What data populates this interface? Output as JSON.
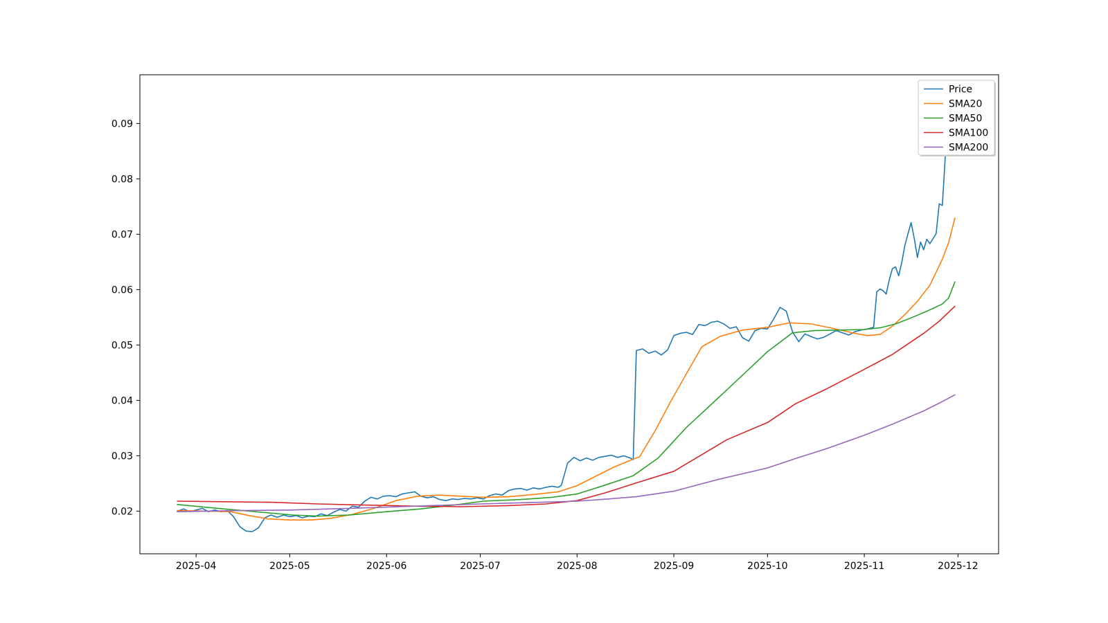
{
  "figure": {
    "background": "#ffffff",
    "border_color": "#000000"
  },
  "chart_data": {
    "type": "line",
    "title": "",
    "xlabel": "",
    "ylabel": "",
    "grid": false,
    "xlim": [
      "2025-03-14",
      "2025-12-14"
    ],
    "ylim": [
      0.0123,
      0.0988
    ],
    "x_ticks": [
      "2025-04",
      "2025-05",
      "2025-06",
      "2025-07",
      "2025-08",
      "2025-09",
      "2025-10",
      "2025-11",
      "2025-12"
    ],
    "y_ticks": [
      0.02,
      0.03,
      0.04,
      0.05,
      0.06,
      0.07,
      0.08,
      0.09
    ],
    "y_tick_labels": [
      "0.02",
      "0.03",
      "0.04",
      "0.05",
      "0.06",
      "0.07",
      "0.08",
      "0.09"
    ],
    "legend": {
      "position": "upper right",
      "entries": [
        "Price",
        "SMA20",
        "SMA50",
        "SMA100",
        "SMA200"
      ],
      "background": "#ffffff",
      "border_color": "#cccccc"
    },
    "series": [
      {
        "name": "Price",
        "color": "#1f77b4",
        "points": [
          [
            "2025-03-26",
            0.02
          ],
          [
            "2025-03-28",
            0.0204
          ],
          [
            "2025-03-30",
            0.0199
          ],
          [
            "2025-04-01",
            0.0202
          ],
          [
            "2025-04-03",
            0.0205
          ],
          [
            "2025-04-05",
            0.0199
          ],
          [
            "2025-04-07",
            0.0202
          ],
          [
            "2025-04-09",
            0.0199
          ],
          [
            "2025-04-11",
            0.0201
          ],
          [
            "2025-04-13",
            0.019
          ],
          [
            "2025-04-15",
            0.0172
          ],
          [
            "2025-04-17",
            0.0164
          ],
          [
            "2025-04-19",
            0.0163
          ],
          [
            "2025-04-21",
            0.017
          ],
          [
            "2025-04-23",
            0.0188
          ],
          [
            "2025-04-25",
            0.0193
          ],
          [
            "2025-04-27",
            0.0189
          ],
          [
            "2025-04-29",
            0.0193
          ],
          [
            "2025-05-01",
            0.019
          ],
          [
            "2025-05-03",
            0.0192
          ],
          [
            "2025-05-05",
            0.0188
          ],
          [
            "2025-05-07",
            0.0191
          ],
          [
            "2025-05-09",
            0.019
          ],
          [
            "2025-05-11",
            0.0195
          ],
          [
            "2025-05-13",
            0.0192
          ],
          [
            "2025-05-15",
            0.0198
          ],
          [
            "2025-05-17",
            0.0203
          ],
          [
            "2025-05-19",
            0.02
          ],
          [
            "2025-05-21",
            0.0209
          ],
          [
            "2025-05-23",
            0.0207
          ],
          [
            "2025-05-25",
            0.0218
          ],
          [
            "2025-05-27",
            0.0225
          ],
          [
            "2025-05-29",
            0.0222
          ],
          [
            "2025-05-31",
            0.0227
          ],
          [
            "2025-06-02",
            0.0228
          ],
          [
            "2025-06-04",
            0.0226
          ],
          [
            "2025-06-06",
            0.0231
          ],
          [
            "2025-06-08",
            0.0233
          ],
          [
            "2025-06-10",
            0.0235
          ],
          [
            "2025-06-12",
            0.0227
          ],
          [
            "2025-06-14",
            0.0224
          ],
          [
            "2025-06-16",
            0.0226
          ],
          [
            "2025-06-18",
            0.0221
          ],
          [
            "2025-06-20",
            0.0219
          ],
          [
            "2025-06-22",
            0.0222
          ],
          [
            "2025-06-24",
            0.0221
          ],
          [
            "2025-06-26",
            0.0223
          ],
          [
            "2025-06-28",
            0.0222
          ],
          [
            "2025-06-30",
            0.0224
          ],
          [
            "2025-07-02",
            0.0222
          ],
          [
            "2025-07-04",
            0.0228
          ],
          [
            "2025-07-06",
            0.0231
          ],
          [
            "2025-07-08",
            0.0229
          ],
          [
            "2025-07-10",
            0.0237
          ],
          [
            "2025-07-12",
            0.024
          ],
          [
            "2025-07-14",
            0.0241
          ],
          [
            "2025-07-16",
            0.0238
          ],
          [
            "2025-07-18",
            0.0242
          ],
          [
            "2025-07-20",
            0.024
          ],
          [
            "2025-07-22",
            0.0243
          ],
          [
            "2025-07-24",
            0.0245
          ],
          [
            "2025-07-26",
            0.0243
          ],
          [
            "2025-07-27",
            0.0247
          ],
          [
            "2025-07-29",
            0.0287
          ],
          [
            "2025-07-31",
            0.0297
          ],
          [
            "2025-08-02",
            0.0291
          ],
          [
            "2025-08-04",
            0.0296
          ],
          [
            "2025-08-06",
            0.0292
          ],
          [
            "2025-08-08",
            0.0297
          ],
          [
            "2025-08-10",
            0.0299
          ],
          [
            "2025-08-12",
            0.0301
          ],
          [
            "2025-08-14",
            0.0297
          ],
          [
            "2025-08-16",
            0.03
          ],
          [
            "2025-08-18",
            0.0296
          ],
          [
            "2025-08-19",
            0.0293
          ],
          [
            "2025-08-20",
            0.049
          ],
          [
            "2025-08-22",
            0.0493
          ],
          [
            "2025-08-24",
            0.0485
          ],
          [
            "2025-08-26",
            0.0489
          ],
          [
            "2025-08-28",
            0.0482
          ],
          [
            "2025-08-30",
            0.0491
          ],
          [
            "2025-09-01",
            0.0517
          ],
          [
            "2025-09-03",
            0.0521
          ],
          [
            "2025-09-05",
            0.0523
          ],
          [
            "2025-09-07",
            0.0519
          ],
          [
            "2025-09-09",
            0.0537
          ],
          [
            "2025-09-11",
            0.0535
          ],
          [
            "2025-09-13",
            0.0541
          ],
          [
            "2025-09-15",
            0.0543
          ],
          [
            "2025-09-17",
            0.0538
          ],
          [
            "2025-09-19",
            0.053
          ],
          [
            "2025-09-21",
            0.0533
          ],
          [
            "2025-09-23",
            0.0513
          ],
          [
            "2025-09-25",
            0.0507
          ],
          [
            "2025-09-27",
            0.0526
          ],
          [
            "2025-09-29",
            0.053
          ],
          [
            "2025-10-01",
            0.0529
          ],
          [
            "2025-10-03",
            0.0547
          ],
          [
            "2025-10-05",
            0.0568
          ],
          [
            "2025-10-07",
            0.0561
          ],
          [
            "2025-10-09",
            0.0524
          ],
          [
            "2025-10-11",
            0.0506
          ],
          [
            "2025-10-13",
            0.052
          ],
          [
            "2025-10-15",
            0.0515
          ],
          [
            "2025-10-17",
            0.0511
          ],
          [
            "2025-10-19",
            0.0514
          ],
          [
            "2025-10-21",
            0.052
          ],
          [
            "2025-10-23",
            0.0526
          ],
          [
            "2025-10-25",
            0.0522
          ],
          [
            "2025-10-27",
            0.0518
          ],
          [
            "2025-10-29",
            0.0524
          ],
          [
            "2025-10-31",
            0.0527
          ],
          [
            "2025-11-02",
            0.0529
          ],
          [
            "2025-11-04",
            0.0532
          ],
          [
            "2025-11-05",
            0.0596
          ],
          [
            "2025-11-06",
            0.0601
          ],
          [
            "2025-11-07",
            0.0598
          ],
          [
            "2025-11-08",
            0.0592
          ],
          [
            "2025-11-09",
            0.0618
          ],
          [
            "2025-11-10",
            0.0638
          ],
          [
            "2025-11-11",
            0.0641
          ],
          [
            "2025-11-12",
            0.0625
          ],
          [
            "2025-11-13",
            0.0649
          ],
          [
            "2025-11-14",
            0.068
          ],
          [
            "2025-11-15",
            0.0701
          ],
          [
            "2025-11-16",
            0.0721
          ],
          [
            "2025-11-17",
            0.0692
          ],
          [
            "2025-11-18",
            0.0658
          ],
          [
            "2025-11-19",
            0.0686
          ],
          [
            "2025-11-20",
            0.0672
          ],
          [
            "2025-11-21",
            0.0691
          ],
          [
            "2025-11-22",
            0.0683
          ],
          [
            "2025-11-24",
            0.0701
          ],
          [
            "2025-11-25",
            0.0755
          ],
          [
            "2025-11-26",
            0.0752
          ],
          [
            "2025-11-27",
            0.0846
          ],
          [
            "2025-11-28",
            0.0852
          ],
          [
            "2025-11-30",
            0.095
          ]
        ]
      },
      {
        "name": "SMA20",
        "color": "#ff7f0e",
        "points": [
          [
            "2025-03-26",
            0.0201
          ],
          [
            "2025-04-05",
            0.02
          ],
          [
            "2025-04-12",
            0.0199
          ],
          [
            "2025-04-18",
            0.0192
          ],
          [
            "2025-04-24",
            0.0186
          ],
          [
            "2025-05-01",
            0.0184
          ],
          [
            "2025-05-08",
            0.0184
          ],
          [
            "2025-05-14",
            0.0187
          ],
          [
            "2025-05-21",
            0.0194
          ],
          [
            "2025-05-28",
            0.0205
          ],
          [
            "2025-06-04",
            0.0219
          ],
          [
            "2025-06-11",
            0.0227
          ],
          [
            "2025-06-18",
            0.0229
          ],
          [
            "2025-06-25",
            0.0227
          ],
          [
            "2025-07-02",
            0.0225
          ],
          [
            "2025-07-10",
            0.0226
          ],
          [
            "2025-07-18",
            0.023
          ],
          [
            "2025-07-26",
            0.0235
          ],
          [
            "2025-08-01",
            0.0246
          ],
          [
            "2025-08-07",
            0.0263
          ],
          [
            "2025-08-13",
            0.028
          ],
          [
            "2025-08-19",
            0.0294
          ],
          [
            "2025-08-21",
            0.0298
          ],
          [
            "2025-08-26",
            0.0345
          ],
          [
            "2025-08-31",
            0.0398
          ],
          [
            "2025-09-05",
            0.0448
          ],
          [
            "2025-09-10",
            0.0497
          ],
          [
            "2025-09-16",
            0.0516
          ],
          [
            "2025-09-23",
            0.0527
          ],
          [
            "2025-10-01",
            0.0532
          ],
          [
            "2025-10-08",
            0.054
          ],
          [
            "2025-10-15",
            0.0538
          ],
          [
            "2025-10-22",
            0.053
          ],
          [
            "2025-10-29",
            0.0521
          ],
          [
            "2025-11-02",
            0.0517
          ],
          [
            "2025-11-06",
            0.0519
          ],
          [
            "2025-11-10",
            0.0534
          ],
          [
            "2025-11-14",
            0.0555
          ],
          [
            "2025-11-18",
            0.0579
          ],
          [
            "2025-11-22",
            0.0608
          ],
          [
            "2025-11-26",
            0.0655
          ],
          [
            "2025-11-28",
            0.0685
          ],
          [
            "2025-11-30",
            0.0729
          ]
        ]
      },
      {
        "name": "SMA50",
        "color": "#2ca02c",
        "points": [
          [
            "2025-03-26",
            0.0212
          ],
          [
            "2025-04-08",
            0.0205
          ],
          [
            "2025-04-20",
            0.0199
          ],
          [
            "2025-05-02",
            0.0193
          ],
          [
            "2025-05-10",
            0.0191
          ],
          [
            "2025-05-20",
            0.0193
          ],
          [
            "2025-06-01",
            0.0199
          ],
          [
            "2025-06-12",
            0.0204
          ],
          [
            "2025-06-24",
            0.0212
          ],
          [
            "2025-07-02",
            0.0218
          ],
          [
            "2025-07-14",
            0.0221
          ],
          [
            "2025-07-24",
            0.0225
          ],
          [
            "2025-08-01",
            0.0231
          ],
          [
            "2025-08-10",
            0.0247
          ],
          [
            "2025-08-19",
            0.0264
          ],
          [
            "2025-08-27",
            0.0296
          ],
          [
            "2025-09-05",
            0.0351
          ],
          [
            "2025-09-18",
            0.0419
          ],
          [
            "2025-10-01",
            0.0488
          ],
          [
            "2025-10-09",
            0.0522
          ],
          [
            "2025-10-16",
            0.0526
          ],
          [
            "2025-10-24",
            0.0527
          ],
          [
            "2025-11-01",
            0.0528
          ],
          [
            "2025-11-06",
            0.0531
          ],
          [
            "2025-11-11",
            0.0538
          ],
          [
            "2025-11-16",
            0.0549
          ],
          [
            "2025-11-21",
            0.0561
          ],
          [
            "2025-11-26",
            0.0574
          ],
          [
            "2025-11-28",
            0.0585
          ],
          [
            "2025-11-30",
            0.0614
          ]
        ]
      },
      {
        "name": "SMA100",
        "color": "#d62728",
        "points": [
          [
            "2025-03-26",
            0.0218
          ],
          [
            "2025-04-10",
            0.0217
          ],
          [
            "2025-04-25",
            0.0216
          ],
          [
            "2025-05-10",
            0.0213
          ],
          [
            "2025-05-25",
            0.0211
          ],
          [
            "2025-06-10",
            0.0209
          ],
          [
            "2025-06-25",
            0.0208
          ],
          [
            "2025-07-10",
            0.021
          ],
          [
            "2025-07-22",
            0.0213
          ],
          [
            "2025-08-01",
            0.0219
          ],
          [
            "2025-08-10",
            0.0233
          ],
          [
            "2025-08-20",
            0.0251
          ],
          [
            "2025-09-01",
            0.0272
          ],
          [
            "2025-09-18",
            0.0329
          ],
          [
            "2025-10-01",
            0.036
          ],
          [
            "2025-10-10",
            0.0394
          ],
          [
            "2025-10-20",
            0.0421
          ],
          [
            "2025-11-01",
            0.0456
          ],
          [
            "2025-11-10",
            0.0483
          ],
          [
            "2025-11-20",
            0.0521
          ],
          [
            "2025-11-25",
            0.0543
          ],
          [
            "2025-11-30",
            0.057
          ]
        ]
      },
      {
        "name": "SMA200",
        "color": "#9467bd",
        "points": [
          [
            "2025-03-26",
            0.0199
          ],
          [
            "2025-04-15",
            0.0201
          ],
          [
            "2025-05-01",
            0.0202
          ],
          [
            "2025-05-20",
            0.0205
          ],
          [
            "2025-06-05",
            0.0208
          ],
          [
            "2025-07-01",
            0.0213
          ],
          [
            "2025-07-20",
            0.0216
          ],
          [
            "2025-08-01",
            0.0218
          ],
          [
            "2025-08-11",
            0.0222
          ],
          [
            "2025-08-20",
            0.0226
          ],
          [
            "2025-09-01",
            0.0236
          ],
          [
            "2025-09-15",
            0.0257
          ],
          [
            "2025-10-01",
            0.0278
          ],
          [
            "2025-10-10",
            0.0295
          ],
          [
            "2025-10-20",
            0.0313
          ],
          [
            "2025-11-01",
            0.0337
          ],
          [
            "2025-11-10",
            0.0357
          ],
          [
            "2025-11-20",
            0.0381
          ],
          [
            "2025-11-25",
            0.0395
          ],
          [
            "2025-11-30",
            0.041
          ]
        ]
      }
    ]
  }
}
